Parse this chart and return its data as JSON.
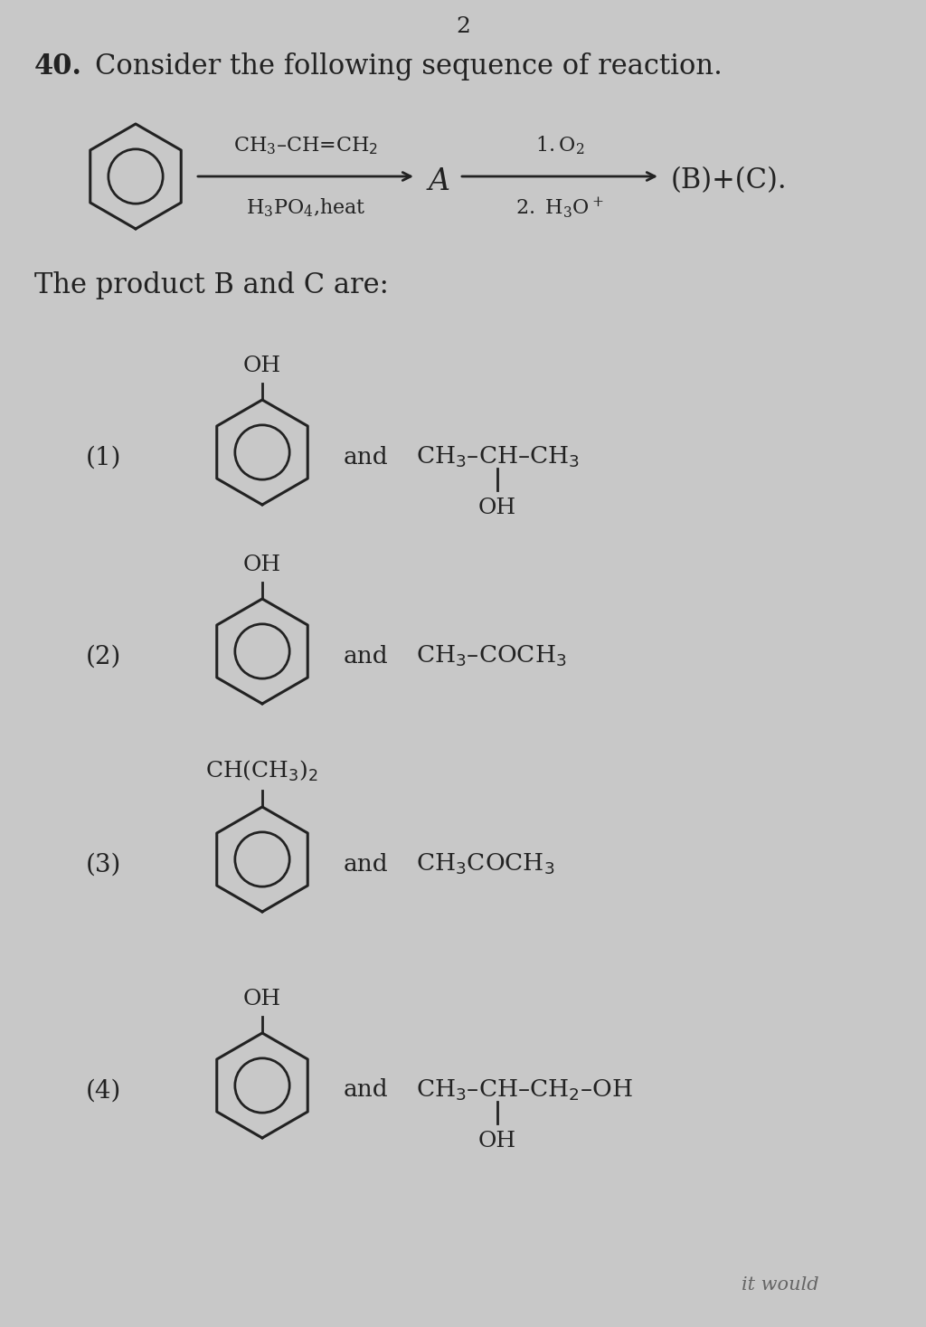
{
  "title_number": "40.",
  "title_text": "Consider the following sequence of reaction.",
  "arrow1_label_top": "CH₃–CH=CH₂",
  "arrow1_label_bottom": "H₃PO₄,heat",
  "middle_label": "A",
  "arrow2_label_top": "1.O₂",
  "arrow2_label_bottom": "2. H₃O⁺",
  "products": "(B)+(C).",
  "subtitle": "The product B and C are:",
  "bg_color": "#c8c8c8",
  "text_color": "#222222",
  "font_size_title": 22,
  "font_size_body": 20,
  "font_size_small": 15,
  "font_size_opt_num": 20,
  "font_size_chem": 19
}
